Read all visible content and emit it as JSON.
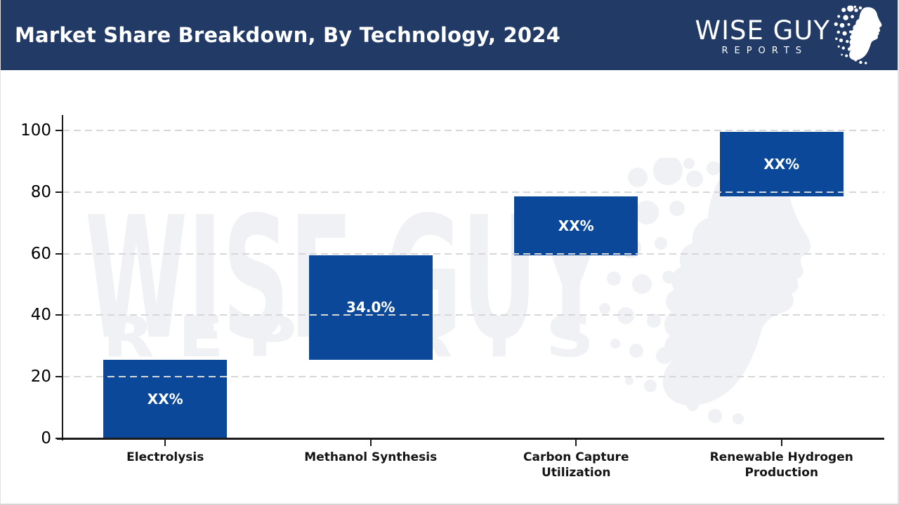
{
  "header": {
    "title": "Market Share Breakdown, By Technology, 2024",
    "logo": {
      "line1": "WISE GUY",
      "line2": "REPORTS"
    }
  },
  "watermark": {
    "line1": "WISE GUY",
    "line2": "R E P O R T S"
  },
  "icons": {
    "logo_face": "wiseguy-head-icon",
    "watermark_face": "wiseguy-head-watermark-icon"
  },
  "colors": {
    "header_bg": "#213A66",
    "title_text": "#ffffff",
    "bar_blue": "#0B4899",
    "bar_label_text": "#ffffff",
    "grid": "#d7d7d7",
    "axis": "#1a1a1a",
    "watermark": "#f0f1f4"
  },
  "chart_data": {
    "type": "bar",
    "subtype": "floating-waterfall",
    "title": "Market Share Breakdown, By Technology, 2024",
    "xlabel": "",
    "ylabel": "",
    "categories": [
      "Electrolysis",
      "Methanol Synthesis",
      "Carbon Capture Utilization",
      "Renewable Hydrogen Production"
    ],
    "segments": [
      {
        "label": "XX%",
        "start": 0,
        "end": 25.5,
        "value_shown": false
      },
      {
        "label": "34.0%",
        "start": 25.5,
        "end": 59.5,
        "value_shown": true
      },
      {
        "label": "XX%",
        "start": 59.5,
        "end": 78.5,
        "value_shown": false
      },
      {
        "label": "XX%",
        "start": 78.5,
        "end": 99.5,
        "value_shown": false
      }
    ],
    "values": [
      25.5,
      34.0,
      19.0,
      21.0
    ],
    "yticks": [
      0,
      20,
      40,
      60,
      80,
      100
    ],
    "ylim": [
      0,
      105
    ],
    "grid": "horizontal-dashed-over-bars",
    "legend": "none"
  }
}
